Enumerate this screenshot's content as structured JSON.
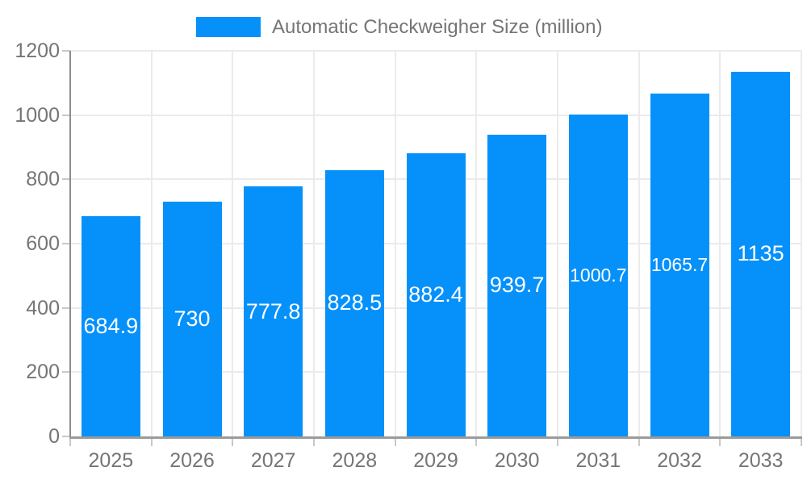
{
  "chart_data": {
    "type": "bar",
    "title": "Automatic Checkweigher Size (million)",
    "categories": [
      "2025",
      "2026",
      "2027",
      "2028",
      "2029",
      "2030",
      "2031",
      "2032",
      "2033"
    ],
    "values": [
      684.9,
      730,
      777.8,
      828.5,
      882.4,
      939.7,
      1000.7,
      1065.7,
      1135
    ],
    "value_labels": [
      "684.9",
      "730",
      "777.8",
      "828.5",
      "882.4",
      "939.7",
      "1000.7",
      "1065.7",
      "1135"
    ],
    "xlabel": "",
    "ylabel": "",
    "ylim": [
      0,
      1200
    ],
    "yticks": [
      0,
      200,
      400,
      600,
      800,
      1000,
      1200
    ],
    "ytick_labels": [
      "0",
      "200",
      "400",
      "600",
      "800",
      "1000",
      "1200"
    ],
    "grid": "on",
    "legend_position": "top-center",
    "colors": {
      "bar": "#0691FA",
      "bar_label_text": "#FFFFFF",
      "axis_text": "#757575",
      "gridline": "#EBEBEB",
      "y_axis_line": "#8D8D8D",
      "x_axis_line": "#9B9B9B",
      "tick_line": "#C8C8C8",
      "background": "#FFFFFF"
    }
  }
}
